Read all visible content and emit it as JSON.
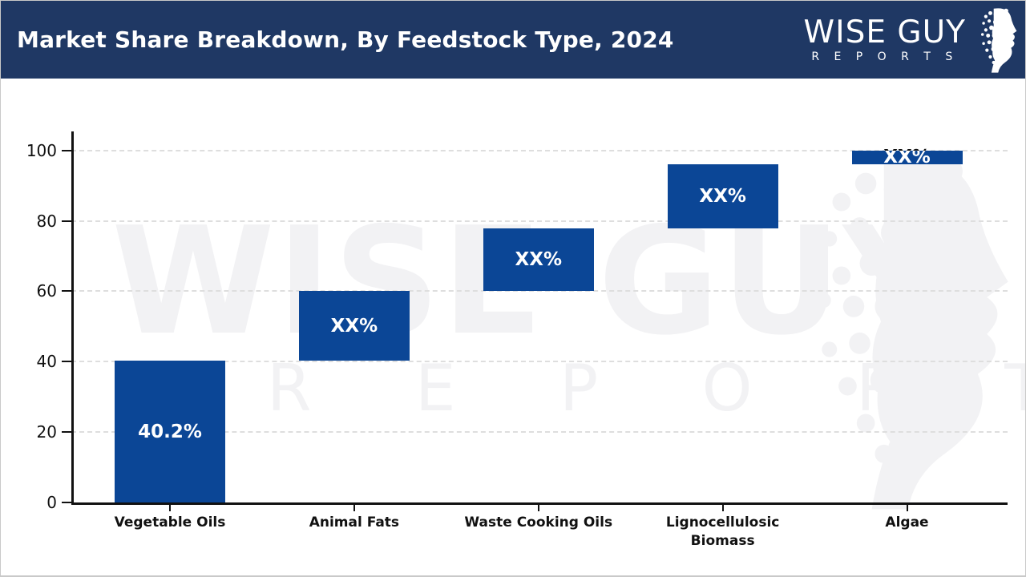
{
  "header": {
    "title": "Market Share Breakdown, By Feedstock Type, 2024",
    "logo": {
      "line1": "WISE GUY",
      "line2": "R E P O R T S"
    }
  },
  "watermark": {
    "line1": "WISE GUY",
    "line2": "R E P O R T S"
  },
  "colors": {
    "header_bg": "#1F3864",
    "bar_blue": "#0B4696",
    "grid": "#DEDEDE",
    "axis": "#111111",
    "watermark": "#F2F2F4"
  },
  "chart_data": {
    "type": "bar",
    "subtype": "waterfall",
    "title": "Market Share Breakdown, By Feedstock Type, 2024",
    "xlabel": "",
    "ylabel": "",
    "ylim": [
      0,
      105
    ],
    "yticks": [
      0,
      20,
      40,
      60,
      80,
      100
    ],
    "grid": "horizontal dashed",
    "legend": "none",
    "bar_color": "#0B4696",
    "categories": [
      "Vegetable Oils",
      "Animal Fats",
      "Waste Cooking Oils",
      "Lignocellulosic Biomass",
      "Algae"
    ],
    "segments": [
      {
        "category": "Vegetable Oils",
        "start": 0,
        "end": 40.2,
        "label": "40.2%"
      },
      {
        "category": "Animal Fats",
        "start": 40.2,
        "end": 60.1,
        "label": "XX%"
      },
      {
        "category": "Waste Cooking Oils",
        "start": 60.1,
        "end": 77.9,
        "label": "XX%"
      },
      {
        "category": "Lignocellulosic Biomass",
        "start": 77.9,
        "end": 96.1,
        "label": "XX%"
      },
      {
        "category": "Algae",
        "start": 96.1,
        "end": 100,
        "label": "XX%"
      }
    ]
  }
}
